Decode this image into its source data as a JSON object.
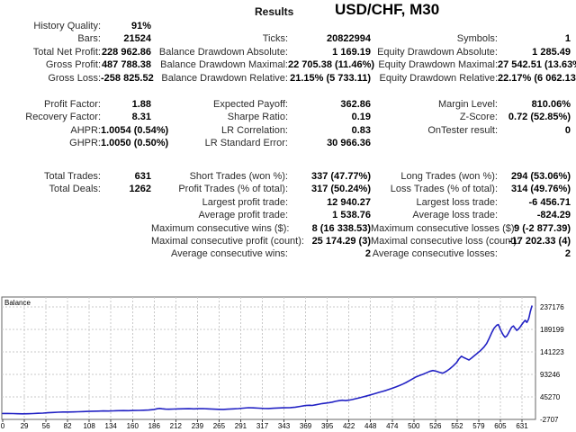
{
  "header": {
    "results_label": "Results",
    "symbol_period": "USD/CHF, M30"
  },
  "stats": {
    "blocks": [
      {
        "rows": [
          [
            "History Quality:",
            "91%",
            "",
            "",
            "",
            ""
          ],
          [
            "Bars:",
            "21524",
            "Ticks:",
            "20822994",
            "Symbols:",
            "1"
          ],
          [
            "Total Net Profit:",
            "228 962.86",
            "Balance Drawdown Absolute:",
            "1 169.19",
            "Equity Drawdown Absolute:",
            "1 285.49"
          ],
          [
            "Gross Profit:",
            "487 788.38",
            "Balance Drawdown Maximal:",
            "22 705.38 (11.46%)",
            "Equity Drawdown Maximal:",
            "27 542.51 (13.63%)"
          ],
          [
            "Gross Loss:",
            "-258 825.52",
            "Balance Drawdown Relative:",
            "21.15% (5 733.11)",
            "Equity Drawdown Relative:",
            "22.17% (6 062.13)"
          ]
        ]
      },
      {
        "rows": [
          [
            "Profit Factor:",
            "1.88",
            "Expected Payoff:",
            "362.86",
            "Margin Level:",
            "810.06%"
          ],
          [
            "Recovery Factor:",
            "8.31",
            "Sharpe Ratio:",
            "0.19",
            "Z-Score:",
            "0.72 (52.85%)"
          ],
          [
            "AHPR:",
            "1.0054 (0.54%)",
            "LR Correlation:",
            "0.83",
            "OnTester result:",
            "0"
          ],
          [
            "GHPR:",
            "1.0050 (0.50%)",
            "LR Standard Error:",
            "30 966.36",
            "",
            ""
          ]
        ]
      },
      {
        "rows": [
          [
            "Total Trades:",
            "631",
            "Short Trades (won %):",
            "337 (47.77%)",
            "Long Trades (won %):",
            "294 (53.06%)"
          ],
          [
            "Total Deals:",
            "1262",
            "Profit Trades (% of total):",
            "317 (50.24%)",
            "Loss Trades (% of total):",
            "314 (49.76%)"
          ],
          [
            "",
            "",
            "Largest profit trade:",
            "12 940.27",
            "Largest loss trade:",
            "-6 456.71"
          ],
          [
            "",
            "",
            "Average profit trade:",
            "1 538.76",
            "Average loss trade:",
            "-824.29"
          ],
          [
            "",
            "",
            "Maximum consecutive wins ($):",
            "8 (16 338.53)",
            "Maximum consecutive losses ($):",
            "9 (-2 877.39)"
          ],
          [
            "",
            "",
            "Maximal consecutive profit (count):",
            "25 174.29 (3)",
            "Maximal consecutive loss (count):",
            "-17 202.33 (4)"
          ],
          [
            "",
            "",
            "Average consecutive wins:",
            "2",
            "Average consecutive losses:",
            "2"
          ]
        ]
      }
    ]
  },
  "chart_data": {
    "type": "line",
    "title": "Balance",
    "xlabel": "",
    "ylabel": "",
    "xlim": [
      0,
      631
    ],
    "ylim": [
      -2707,
      237176
    ],
    "x_ticks": [
      0,
      29,
      56,
      82,
      108,
      134,
      160,
      186,
      212,
      239,
      265,
      291,
      317,
      343,
      369,
      395,
      422,
      448,
      474,
      500,
      526,
      552,
      579,
      605,
      631
    ],
    "y_ticks": [
      -2707,
      45270,
      93246,
      141223,
      189199,
      237176
    ],
    "y_tick_labels": [
      "-2707",
      "45270",
      "93246",
      "141223",
      "189199",
      "237176"
    ],
    "grid": "dashed",
    "legend_position": "none",
    "colors": {
      "line": "#2222C4",
      "grid": "#C8C8C8",
      "border": "#666666"
    },
    "series": [
      {
        "name": "Balance",
        "points": [
          [
            0,
            10000
          ],
          [
            6,
            9900
          ],
          [
            12,
            9700
          ],
          [
            18,
            9400
          ],
          [
            24,
            9200
          ],
          [
            30,
            9300
          ],
          [
            36,
            9800
          ],
          [
            42,
            10300
          ],
          [
            48,
            10800
          ],
          [
            54,
            11400
          ],
          [
            60,
            12100
          ],
          [
            66,
            12700
          ],
          [
            72,
            13000
          ],
          [
            78,
            13100
          ],
          [
            84,
            13300
          ],
          [
            90,
            13700
          ],
          [
            96,
            14000
          ],
          [
            102,
            14400
          ],
          [
            108,
            14700
          ],
          [
            114,
            15000
          ],
          [
            120,
            15300
          ],
          [
            126,
            15100
          ],
          [
            132,
            15600
          ],
          [
            138,
            15900
          ],
          [
            144,
            16100
          ],
          [
            150,
            15900
          ],
          [
            156,
            16200
          ],
          [
            162,
            16400
          ],
          [
            168,
            16900
          ],
          [
            174,
            17300
          ],
          [
            180,
            18200
          ],
          [
            184,
            19900
          ],
          [
            187,
            20700
          ],
          [
            190,
            19900
          ],
          [
            194,
            19200
          ],
          [
            198,
            19000
          ],
          [
            204,
            19400
          ],
          [
            210,
            19700
          ],
          [
            216,
            20000
          ],
          [
            222,
            20200
          ],
          [
            228,
            19800
          ],
          [
            234,
            20100
          ],
          [
            239,
            20400
          ],
          [
            245,
            19800
          ],
          [
            251,
            19200
          ],
          [
            257,
            18700
          ],
          [
            263,
            18500
          ],
          [
            269,
            19100
          ],
          [
            275,
            19700
          ],
          [
            281,
            20400
          ],
          [
            287,
            21300
          ],
          [
            293,
            22200
          ],
          [
            299,
            21900
          ],
          [
            305,
            21300
          ],
          [
            311,
            20800
          ],
          [
            317,
            20500
          ],
          [
            323,
            21100
          ],
          [
            329,
            21700
          ],
          [
            335,
            22000
          ],
          [
            343,
            22400
          ],
          [
            349,
            23400
          ],
          [
            355,
            25200
          ],
          [
            361,
            26800
          ],
          [
            366,
            27400
          ],
          [
            369,
            27100
          ],
          [
            373,
            28400
          ],
          [
            377,
            29800
          ],
          [
            381,
            31000
          ],
          [
            385,
            32000
          ],
          [
            389,
            33000
          ],
          [
            393,
            34200
          ],
          [
            397,
            35800
          ],
          [
            401,
            37200
          ],
          [
            405,
            38100
          ],
          [
            409,
            37400
          ],
          [
            413,
            38400
          ],
          [
            417,
            39800
          ],
          [
            421,
            41500
          ],
          [
            425,
            43200
          ],
          [
            429,
            45000
          ],
          [
            433,
            46800
          ],
          [
            437,
            48700
          ],
          [
            441,
            50800
          ],
          [
            445,
            52900
          ],
          [
            449,
            55000
          ],
          [
            453,
            57000
          ],
          [
            457,
            59000
          ],
          [
            461,
            61500
          ],
          [
            465,
            64000
          ],
          [
            469,
            66500
          ],
          [
            473,
            69500
          ],
          [
            477,
            72500
          ],
          [
            481,
            76000
          ],
          [
            485,
            80000
          ],
          [
            489,
            84000
          ],
          [
            493,
            88000
          ],
          [
            497,
            91000
          ],
          [
            501,
            93500
          ],
          [
            505,
            96500
          ],
          [
            509,
            99500
          ],
          [
            513,
            101500
          ],
          [
            517,
            100000
          ],
          [
            521,
            97500
          ],
          [
            525,
            96000
          ],
          [
            529,
            100000
          ],
          [
            533,
            105000
          ],
          [
            537,
            111000
          ],
          [
            541,
            118000
          ],
          [
            544,
            126000
          ],
          [
            547,
            132000
          ],
          [
            550,
            129000
          ],
          [
            553,
            126500
          ],
          [
            556,
            124000
          ],
          [
            559,
            128000
          ],
          [
            562,
            132500
          ],
          [
            565,
            137000
          ],
          [
            568,
            141500
          ],
          [
            571,
            146500
          ],
          [
            574,
            152000
          ],
          [
            577,
            159000
          ],
          [
            580,
            170000
          ],
          [
            583,
            182000
          ],
          [
            586,
            192000
          ],
          [
            589,
            198000
          ],
          [
            591,
            199500
          ],
          [
            593,
            191000
          ],
          [
            595,
            183000
          ],
          [
            597,
            177000
          ],
          [
            599,
            172500
          ],
          [
            601,
            175000
          ],
          [
            603,
            181000
          ],
          [
            605,
            188000
          ],
          [
            607,
            194000
          ],
          [
            609,
            196500
          ],
          [
            611,
            191500
          ],
          [
            613,
            187000
          ],
          [
            615,
            190000
          ],
          [
            617,
            194500
          ],
          [
            619,
            199500
          ],
          [
            621,
            204500
          ],
          [
            623,
            208500
          ],
          [
            625,
            204000
          ],
          [
            627,
            211000
          ],
          [
            628,
            218000
          ],
          [
            629,
            226000
          ],
          [
            630,
            233000
          ],
          [
            631,
            238963
          ]
        ]
      }
    ]
  }
}
